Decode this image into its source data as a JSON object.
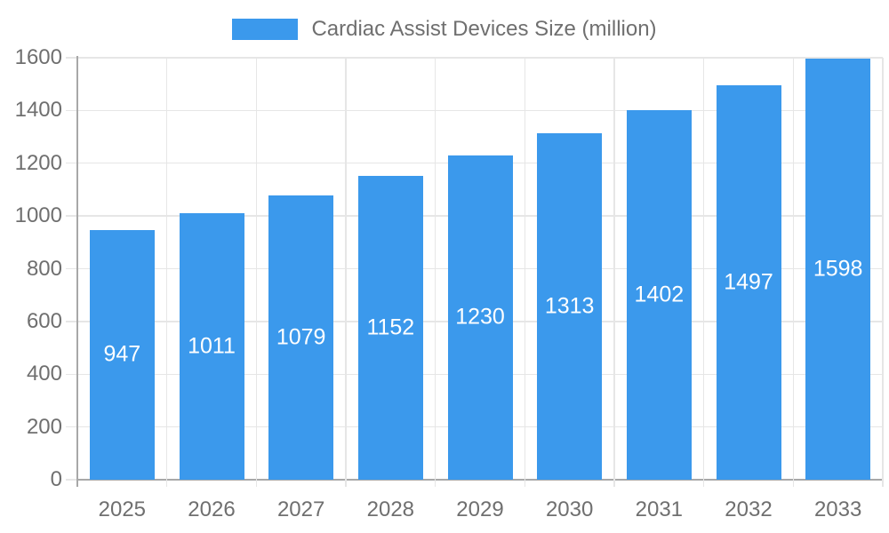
{
  "legend": {
    "label": "Cardiac Assist Devices Size (million)"
  },
  "colors": {
    "bar": "#3B99EC",
    "grid": "#E6E6E6",
    "axis": "#A8A8A8",
    "tick_label": "#6F6F6F",
    "bar_label": "#FFFFFF",
    "background": "#FFFFFF"
  },
  "chart_data": {
    "type": "bar",
    "title": "Cardiac Assist Devices Size (million)",
    "categories": [
      "2025",
      "2026",
      "2027",
      "2028",
      "2029",
      "2030",
      "2031",
      "2032",
      "2033"
    ],
    "values": [
      947,
      1011,
      1079,
      1152,
      1230,
      1313,
      1402,
      1497,
      1598
    ],
    "xlabel": "",
    "ylabel": "",
    "ylim": [
      0,
      1600
    ],
    "yticks": [
      0,
      200,
      400,
      600,
      800,
      1000,
      1200,
      1400,
      1600
    ],
    "grid": true,
    "legend_position": "top",
    "value_labels": "inside-center"
  }
}
